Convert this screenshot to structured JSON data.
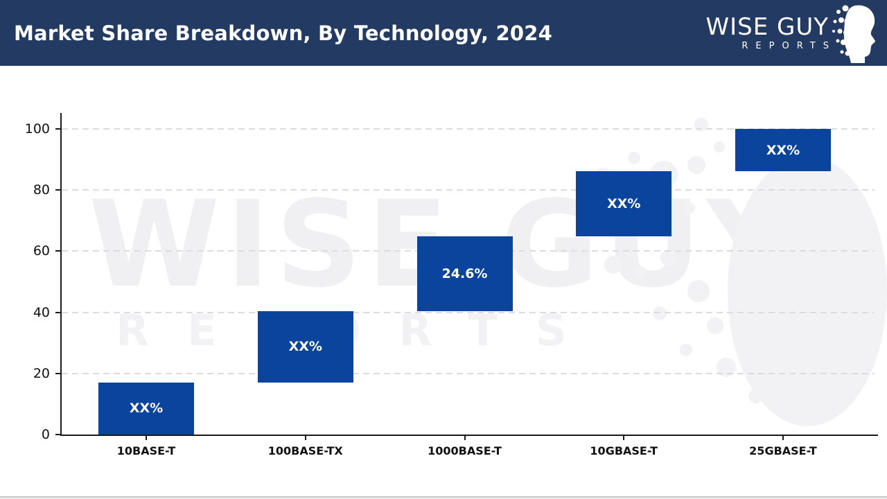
{
  "header": {
    "title": "Market Share Breakdown, By Technology, 2024",
    "logo": {
      "line1": "WISE GUY",
      "line2": "REPORTS"
    }
  },
  "watermark": {
    "line1": "WISE GUY",
    "line2": "REPORTS"
  },
  "chart_data": {
    "type": "bar",
    "variant": "floating-waterfall-segments",
    "title": "Market Share Breakdown, By Technology, 2024",
    "categories": [
      "10BASE-T",
      "100BASE-TX",
      "1000BASE-T",
      "10GBASE-T",
      "25GBASE-T"
    ],
    "segments": [
      {
        "category": "10BASE-T",
        "start": 0,
        "end": 17.1,
        "value": 17.1,
        "label": "XX%"
      },
      {
        "category": "100BASE-TX",
        "start": 17.1,
        "end": 40.3,
        "value": 23.2,
        "label": "XX%"
      },
      {
        "category": "1000BASE-T",
        "start": 40.3,
        "end": 64.9,
        "value": 24.6,
        "label": "24.6%"
      },
      {
        "category": "10GBASE-T",
        "start": 64.9,
        "end": 86.1,
        "value": 21.2,
        "label": "XX%"
      },
      {
        "category": "25GBASE-T",
        "start": 86.1,
        "end": 100,
        "value": 13.9,
        "label": "XX%"
      }
    ],
    "xlabel": "",
    "ylabel": "",
    "ylim": [
      0,
      100
    ],
    "y_ticks": [
      0,
      20,
      40,
      60,
      80,
      100
    ],
    "grid": "horizontal-dashed",
    "legend": "none",
    "bar_color": "#0a449d",
    "bar_label_color": "#ffffff"
  },
  "colors": {
    "header_bg": "#233a63",
    "bar": "#0a449d",
    "grid": "#dcdcdc",
    "axis": "#1a1a1a",
    "watermark": "#f0f0f2",
    "footer_line": "#c7c7c7"
  }
}
